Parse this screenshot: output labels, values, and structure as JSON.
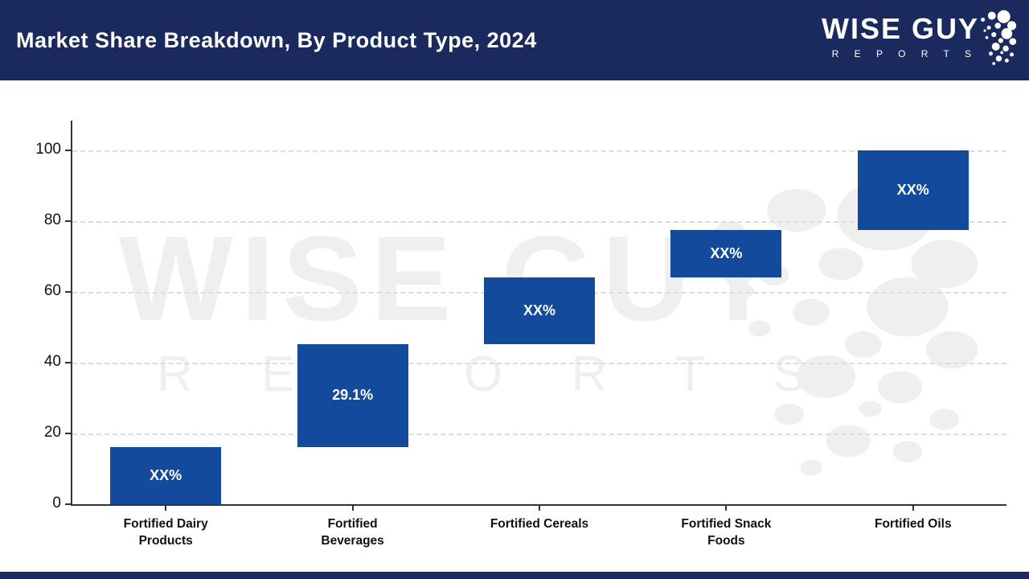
{
  "header": {
    "title": "Market Share Breakdown, By Product Type, 2024",
    "logo": {
      "name": "WISE GUY",
      "sub": "R E P O R T S"
    }
  },
  "watermark": {
    "line1": "WISE GUY",
    "line2": "R E P O R T S"
  },
  "chart_data": {
    "type": "bar",
    "subtype": "waterfall",
    "title": "Market Share Breakdown, By Product Type, 2024",
    "categories": [
      "Fortified Dairy Products",
      "Fortified Beverages",
      "Fortified Cereals",
      "Fortified Snack Foods",
      "Fortified Oils"
    ],
    "category_label_lines": [
      [
        "Fortified Dairy",
        "Products"
      ],
      [
        "Fortified",
        "Beverages"
      ],
      [
        "Fortified Cereals"
      ],
      [
        "Fortified Snack",
        "Foods"
      ],
      [
        "Fortified Oils"
      ]
    ],
    "segments": [
      {
        "category": "Fortified Dairy Products",
        "start": 0,
        "end": 16.2,
        "label": "XX%"
      },
      {
        "category": "Fortified Beverages",
        "start": 16.2,
        "end": 45.3,
        "label": "29.1%"
      },
      {
        "category": "Fortified Cereals",
        "start": 45.3,
        "end": 64.1,
        "label": "XX%"
      },
      {
        "category": "Fortified Snack Foods",
        "start": 64.1,
        "end": 77.4,
        "label": "XX%"
      },
      {
        "category": "Fortified Oils",
        "start": 77.4,
        "end": 100,
        "label": "XX%"
      }
    ],
    "xlabel": "",
    "ylabel": "",
    "ylim": [
      0,
      100
    ],
    "yticks": [
      0,
      20,
      40,
      60,
      80,
      100
    ],
    "grid": "horizontal-dashed",
    "legend": "none",
    "colors": {
      "bar": "#134a9c",
      "bar_label": "#ffffff",
      "header_bg": "#1a2a5e",
      "grid": "#dcdcdc",
      "axis": "#333333",
      "watermark": "#efefef"
    }
  }
}
